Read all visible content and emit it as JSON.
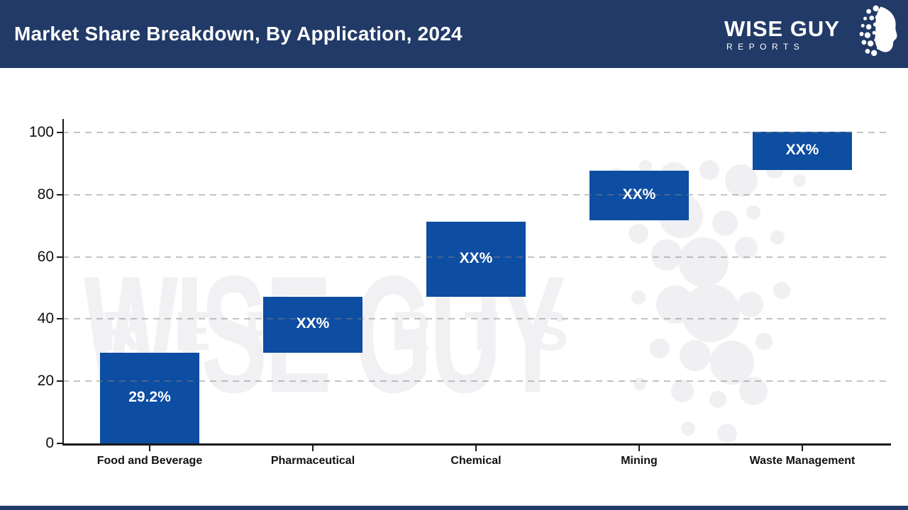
{
  "header": {
    "title": "Market Share Breakdown, By Application, 2024",
    "logo": {
      "line1": "WISE GUY",
      "line2": "REPORTS"
    }
  },
  "watermark": {
    "line1": "WISE GUY",
    "line2": "REPORTS"
  },
  "chart_data": {
    "type": "bar",
    "subtype": "floating-waterfall",
    "title": "Market Share Breakdown, By Application, 2024",
    "xlabel": "",
    "ylabel": "",
    "ylim": [
      0,
      100
    ],
    "yticks": [
      0,
      20,
      40,
      60,
      80,
      100
    ],
    "grid": "horizontal-dashed",
    "legend": "none",
    "bar_color": "#0d4da2",
    "bar_label_color": "#ffffff",
    "categories": [
      "Food and Beverage",
      "Pharmaceutical",
      "Chemical",
      "Mining",
      "Waste Management"
    ],
    "segments": [
      {
        "category": "Food and Beverage",
        "start": 0,
        "end": 29.2,
        "label": "29.2%"
      },
      {
        "category": "Pharmaceutical",
        "start": 29.2,
        "end": 47.2,
        "label": "XX%"
      },
      {
        "category": "Chemical",
        "start": 47.2,
        "end": 71.4,
        "label": "XX%"
      },
      {
        "category": "Mining",
        "start": 71.7,
        "end": 87.6,
        "label": "XX%"
      },
      {
        "category": "Waste Management",
        "start": 87.9,
        "end": 100.3,
        "label": "XX%"
      }
    ]
  },
  "colors": {
    "brand_navy": "#213a67",
    "bar_blue": "#0d4da2"
  }
}
